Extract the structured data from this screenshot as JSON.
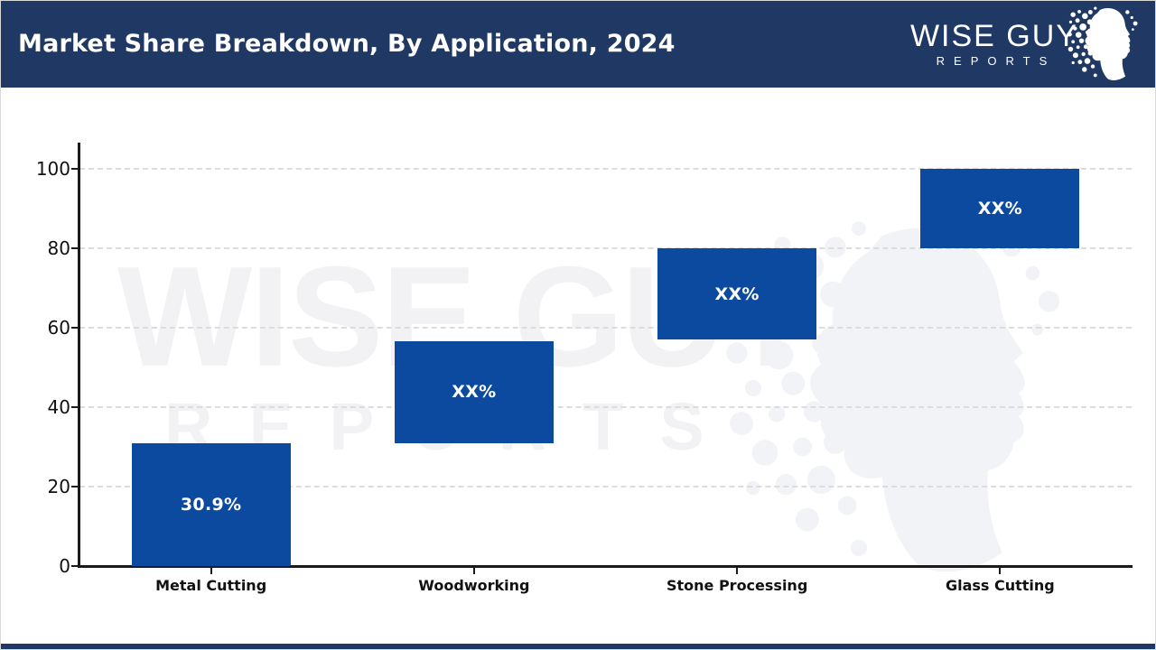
{
  "header": {
    "title": "Market Share Breakdown, By Application, 2024",
    "logo": {
      "line1": "WISE GUY",
      "line2": "REPORTS"
    }
  },
  "watermark": {
    "line1": "WISE GUY",
    "line2": "REPORTS"
  },
  "colors": {
    "header_bg": "#1f3864",
    "footer_bg": "#1f3864",
    "bar": "#0b4a9e",
    "bar_label": "#ffffff",
    "gridline": "#dcdcdc",
    "axis": "#1a1a1a",
    "watermark": "#f2f2f5"
  },
  "chart_data": {
    "type": "bar",
    "subtype": "floating-waterfall",
    "title": "Market Share Breakdown, By Application, 2024",
    "xlabel": "",
    "ylabel": "",
    "ylim": [
      0,
      100
    ],
    "yticks": [
      0,
      20,
      40,
      60,
      80,
      100
    ],
    "grid": "horizontal-dashed",
    "legend": "none",
    "categories": [
      "Metal Cutting",
      "Woodworking",
      "Stone Processing",
      "Glass Cutting"
    ],
    "series": [
      {
        "name": "Market Share",
        "segments": [
          {
            "category": "Metal Cutting",
            "start": 0,
            "end": 30.9,
            "label": "30.9%"
          },
          {
            "category": "Woodworking",
            "start": 31.0,
            "end": 56.6,
            "label": "XX%"
          },
          {
            "category": "Stone Processing",
            "start": 57.0,
            "end": 80.0,
            "label": "XX%"
          },
          {
            "category": "Glass Cutting",
            "start": 80.0,
            "end": 100.0,
            "label": "XX%"
          }
        ]
      }
    ]
  }
}
